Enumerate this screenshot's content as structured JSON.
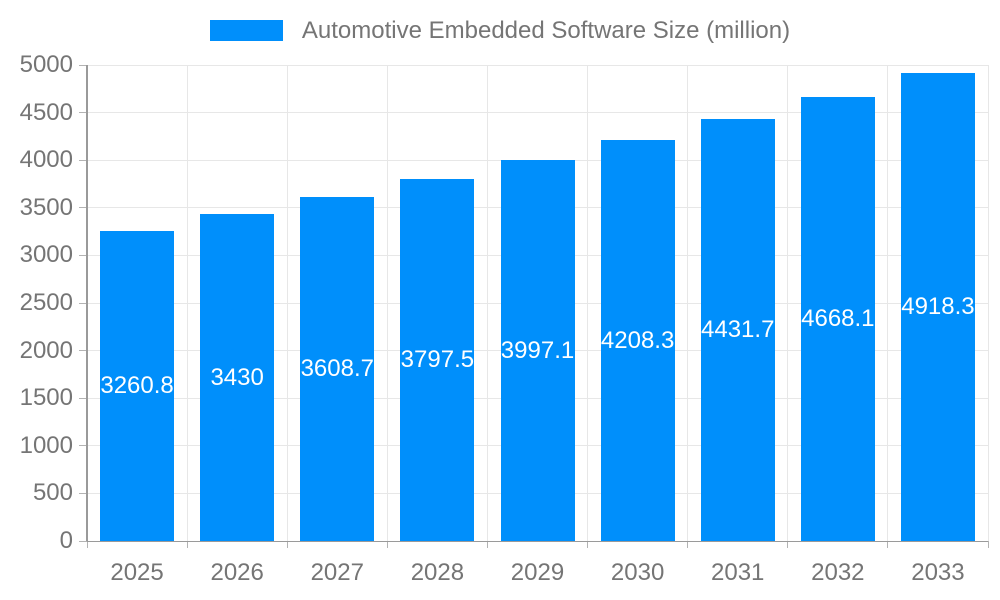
{
  "legend": {
    "label": "Automotive Embedded Software Size (million)"
  },
  "chart_data": {
    "type": "bar",
    "title": "",
    "xlabel": "",
    "ylabel": "",
    "categories": [
      "2025",
      "2026",
      "2027",
      "2028",
      "2029",
      "2030",
      "2031",
      "2032",
      "2033"
    ],
    "series": [
      {
        "name": "Automotive Embedded Software Size (million)",
        "values": [
          3260.8,
          3430,
          3608.7,
          3797.5,
          3997.1,
          4208.3,
          4431.7,
          4668.1,
          4918.3
        ],
        "labels": [
          "3260.8",
          "3430",
          "3608.7",
          "3797.5",
          "3997.1",
          "4208.3",
          "4431.7",
          "4668.1",
          "4918.3"
        ],
        "color": "#008FFB"
      }
    ],
    "ylim": [
      0,
      5000
    ],
    "ytick_step": 500,
    "yticks": [
      "0",
      "500",
      "1000",
      "1500",
      "2000",
      "2500",
      "3000",
      "3500",
      "4000",
      "4500",
      "5000"
    ],
    "grid": true,
    "legend_position": "top",
    "colors": {
      "bar": "#008FFB",
      "value_label_text": "#ffffff",
      "axis_text": "#757575",
      "gridline": "#e7e7e7",
      "axis_line": "#9a9a9a",
      "tick": "#b3b3b3",
      "background": "#ffffff"
    }
  }
}
